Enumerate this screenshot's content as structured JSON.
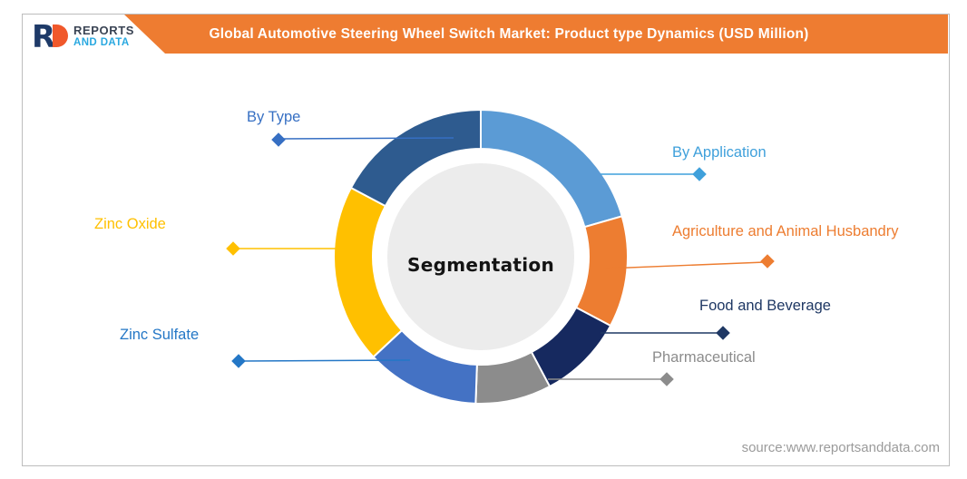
{
  "header": {
    "title": "Global Automotive Steering Wheel Switch Market: Product type Dynamics (USD Million)",
    "banner_color": "#EE7C31",
    "logo": {
      "mark_r": "R",
      "mark_d_color": "#F0582B",
      "mark_r_color": "#1E3A68",
      "line1": "REPORTS",
      "line2": "AND DATA",
      "line1_color": "#3A4454",
      "line2_color": "#29A8E0"
    }
  },
  "chart_data": {
    "type": "pie",
    "subtype": "donut",
    "title": "Segmentation",
    "center_label": "Segmentation",
    "center_label_color": "#141414",
    "hole_color": "#ECECEC",
    "values_labeled": false,
    "segments": [
      {
        "label": "By Application",
        "color": "#5B9BD5",
        "start_deg": 0,
        "end_deg": 74
      },
      {
        "label": "Agriculture and Animal Husbandry",
        "color": "#ED7D31",
        "start_deg": 74,
        "end_deg": 118
      },
      {
        "label": "Food and Beverage",
        "color": "#16295F",
        "start_deg": 118,
        "end_deg": 152
      },
      {
        "label": "Pharmaceutical",
        "color": "#8C8C8C",
        "start_deg": 152,
        "end_deg": 182
      },
      {
        "label": "Zinc Sulfate",
        "color": "#4472C4",
        "start_deg": 182,
        "end_deg": 227
      },
      {
        "label": "Zinc Oxide",
        "color": "#FFC000",
        "start_deg": 227,
        "end_deg": 298
      },
      {
        "label": "By Type",
        "color": "#2E5B8F",
        "start_deg": 298,
        "end_deg": 360
      }
    ]
  },
  "callouts": [
    {
      "label": "By Type",
      "color": "#366FC3"
    },
    {
      "label": "By Application",
      "color": "#3FA0DB"
    },
    {
      "label": "Agriculture and Animal Husbandry",
      "color": "#ED7D31"
    },
    {
      "label": "Food and Beverage",
      "color": "#1F3864"
    },
    {
      "label": "Pharmaceutical",
      "color": "#8C8C8C"
    },
    {
      "label": "Zinc Sulfate",
      "color": "#2477C6"
    },
    {
      "label": "Zinc Oxide",
      "color": "#FFC000"
    }
  ],
  "footer": {
    "source": "source:www.reportsanddata.com",
    "color": "#9B9B9B"
  }
}
